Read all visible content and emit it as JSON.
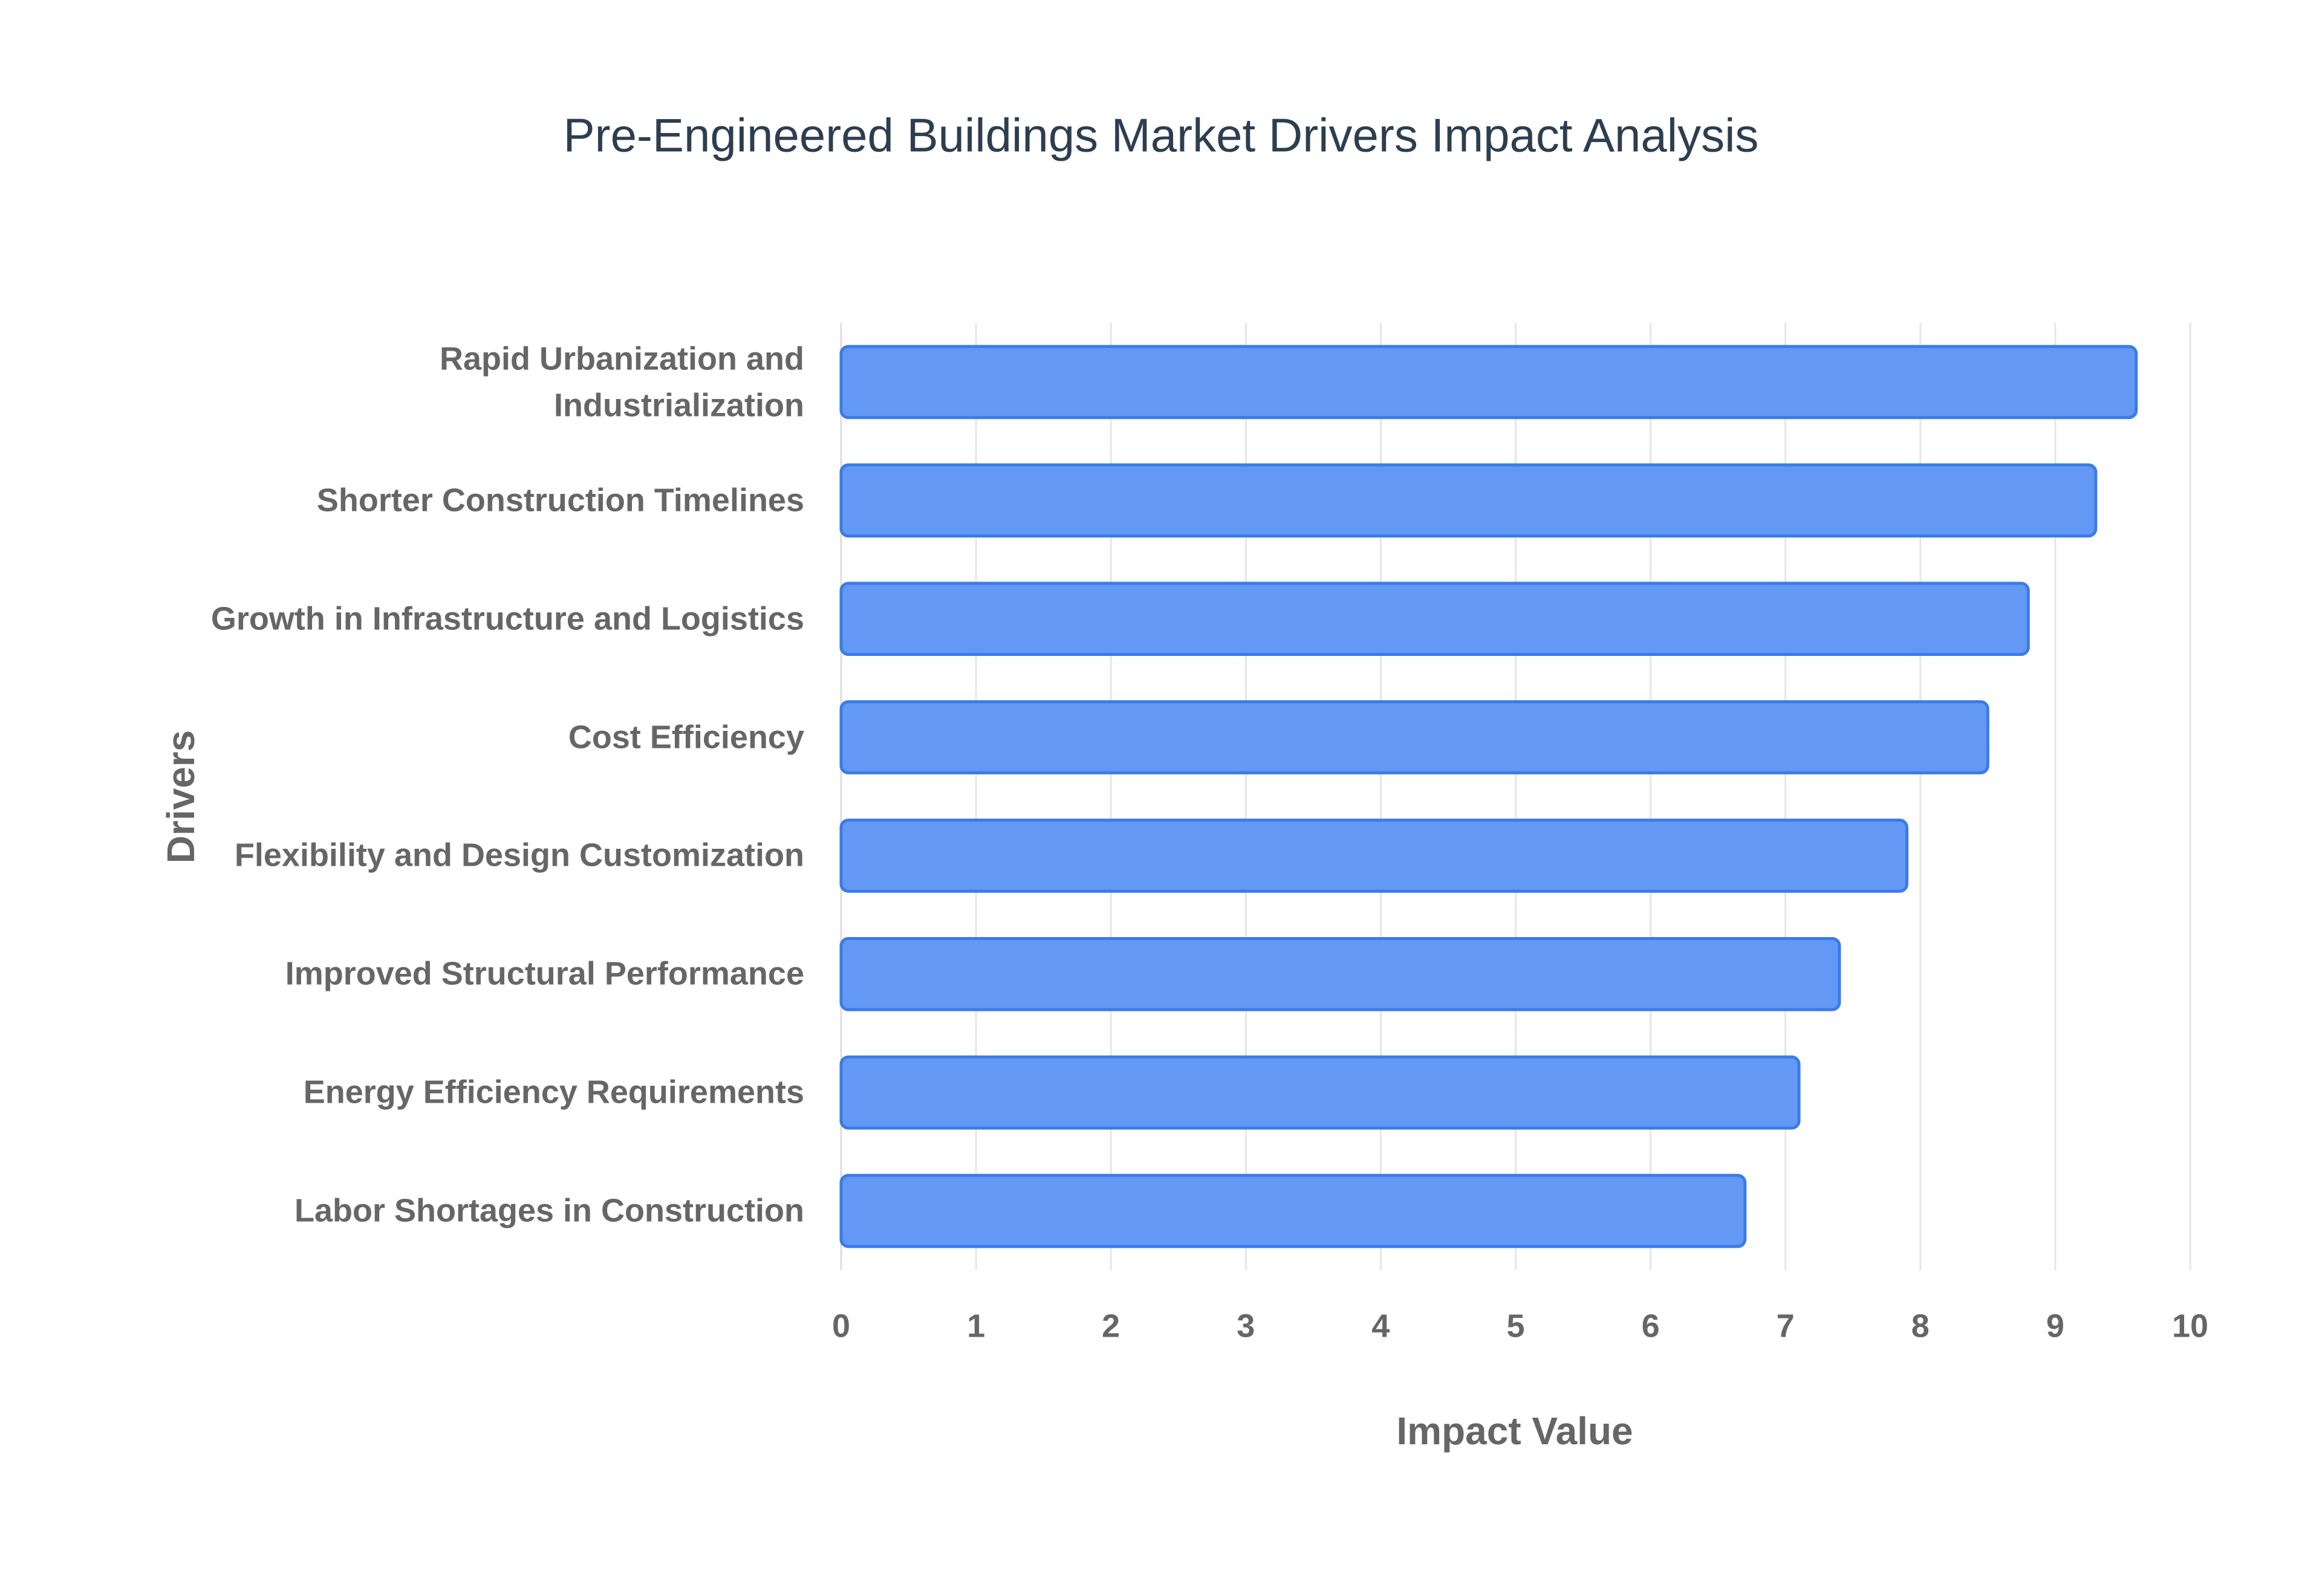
{
  "chart_data": {
    "type": "hbar",
    "title": "Pre-Engineered Buildings Market Drivers Impact Analysis",
    "x_label": "Impact Value",
    "y_label": "Drivers",
    "categories": [
      "Rapid Urbanization and Industrialization",
      "Shorter Construction Timelines",
      "Growth in Infrastructure and Logistics",
      "Cost Efficiency",
      "Flexibility and Design Customization",
      "Improved Structural Performance",
      "Energy Efficiency Requirements",
      "Labor Shortages in Construction"
    ],
    "values": [
      9.6,
      9.3,
      8.8,
      8.5,
      7.9,
      7.4,
      7.1,
      6.7
    ],
    "color": "#6399f5",
    "xlim": [
      0,
      10
    ],
    "xticks": [
      0,
      1,
      2,
      3,
      4,
      5,
      6,
      7,
      8,
      9,
      10
    ],
    "grid": true
  }
}
